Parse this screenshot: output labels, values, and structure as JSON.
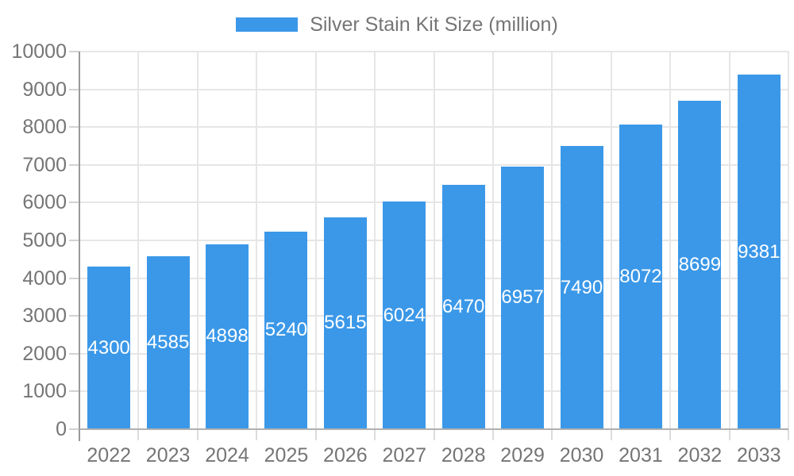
{
  "legend": {
    "label": "Silver Stain Kit Size (million)"
  },
  "colors": {
    "bar": "#3b98e8",
    "grid": "#e6e6e6",
    "y_axis": "#999999",
    "x_axis": "#b0b0b0",
    "tick": "#d2d2d2",
    "axis_text": "#757575",
    "bar_label_text": "#ffffff",
    "background": "#ffffff"
  },
  "chart_data": {
    "type": "bar",
    "title": "Silver Stain Kit Size (million)",
    "categories": [
      "2022",
      "2023",
      "2024",
      "2025",
      "2026",
      "2027",
      "2028",
      "2029",
      "2030",
      "2031",
      "2032",
      "2033"
    ],
    "values": [
      4300,
      4585,
      4898,
      5240,
      5615,
      6024,
      6470,
      6957,
      7490,
      8072,
      8699,
      9381
    ],
    "value_labels": [
      "4300",
      "4585",
      "4898",
      "5240",
      "5615",
      "6024",
      "6470",
      "6957",
      "7490",
      "8072",
      "8699",
      "9381"
    ],
    "xlabel": "",
    "ylabel": "",
    "ylim": [
      0,
      10000
    ],
    "yticks": [
      0,
      1000,
      2000,
      3000,
      4000,
      5000,
      6000,
      7000,
      8000,
      9000,
      10000
    ],
    "grid": true,
    "legend_position": "top-center",
    "value_labels_inside_bars": true
  }
}
